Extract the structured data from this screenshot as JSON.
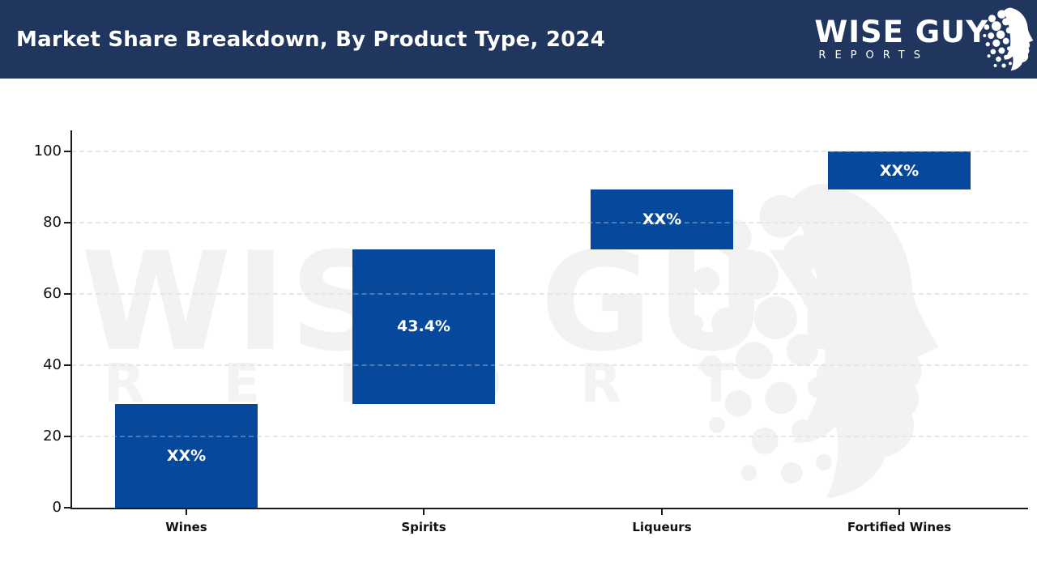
{
  "header": {
    "title": "Market Share Breakdown, By Product Type, 2024",
    "background_color": "#20365f"
  },
  "logo": {
    "line1": "WISE GUY",
    "line2": "REPORTS",
    "head_icon": "dotted-head-profile"
  },
  "watermark": {
    "line1": "WISE GUY",
    "line2": "REPORTS",
    "head_icon": "dotted-head-profile"
  },
  "chart_data": {
    "type": "bar",
    "subtype": "waterfall",
    "title": "Market Share Breakdown, By Product Type, 2024",
    "categories": [
      "Wines",
      "Spirits",
      "Liqueurs",
      "Fortified Wines"
    ],
    "segments": [
      {
        "category": "Wines",
        "start": 0,
        "end": 29.1,
        "value": 29.1,
        "value_label": "XX%"
      },
      {
        "category": "Spirits",
        "start": 29.1,
        "end": 72.5,
        "value": 43.4,
        "value_label": "43.4%"
      },
      {
        "category": "Liqueurs",
        "start": 72.5,
        "end": 89.3,
        "value": 16.8,
        "value_label": "XX%"
      },
      {
        "category": "Fortified Wines",
        "start": 89.3,
        "end": 100,
        "value": 10.7,
        "value_label": "XX%"
      }
    ],
    "xlabel": "",
    "ylabel": "",
    "yticks": [
      0,
      20,
      40,
      60,
      80,
      100
    ],
    "ylim": [
      0,
      105
    ],
    "grid": "dashed-horizontal",
    "legend": "none",
    "bar_color": "#05489c",
    "bar_label_color": "#ffffff",
    "axis_color": "#1a1a1a"
  }
}
